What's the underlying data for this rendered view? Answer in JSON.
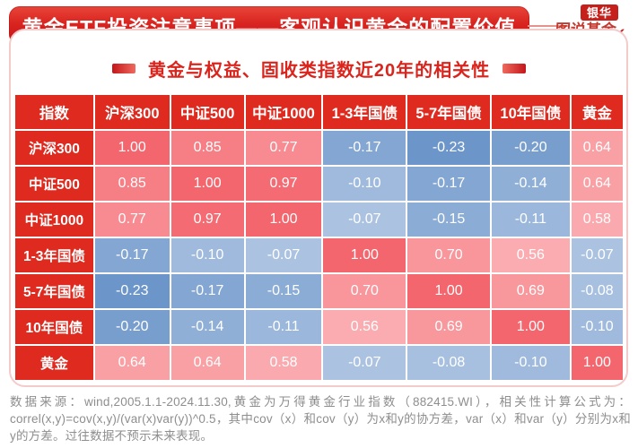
{
  "header": {
    "title": "黄金ETF投资注意事项——客观认识黄金的配置价值",
    "logo": {
      "brand": "银华",
      "product": "图说基金",
      "check": "✔"
    }
  },
  "subtitle": "黄金与权益、固收类指数近20年的相关性",
  "chart_data": {
    "type": "heatmap",
    "title": "黄金与权益、固收类指数近20年的相关性",
    "corner_label": "指数",
    "columns": [
      "沪深300",
      "中证500",
      "中证1000",
      "1-3年国债",
      "5-7年国债",
      "10年国债",
      "黄金"
    ],
    "rows": [
      "沪深300",
      "中证500",
      "中证1000",
      "1-3年国债",
      "5-7年国债",
      "10年国债",
      "黄金"
    ],
    "values": [
      [
        1.0,
        0.85,
        0.77,
        -0.17,
        -0.23,
        -0.2,
        0.64
      ],
      [
        0.85,
        1.0,
        0.97,
        -0.1,
        -0.17,
        -0.14,
        0.64
      ],
      [
        0.77,
        0.97,
        1.0,
        -0.07,
        -0.15,
        -0.11,
        0.58
      ],
      [
        -0.17,
        -0.1,
        -0.07,
        1.0,
        0.7,
        0.56,
        -0.07
      ],
      [
        -0.23,
        -0.17,
        -0.15,
        0.7,
        1.0,
        0.69,
        -0.08
      ],
      [
        -0.2,
        -0.14,
        -0.11,
        0.56,
        0.69,
        1.0,
        -0.1
      ],
      [
        0.64,
        0.64,
        0.58,
        -0.07,
        -0.08,
        -0.1,
        1.0
      ]
    ],
    "value_decimals": 2,
    "colormap": {
      "header_bg": "#de2a1f",
      "positive_low": "#fbb6ba",
      "positive_high": "#f4666e",
      "positive_range": [
        0.5,
        1.0
      ],
      "negative_low": "#c6d6ec",
      "negative_high": "#6490c6",
      "negative_range": [
        0.0,
        -0.25
      ]
    },
    "legend": "none",
    "grid": "white gaps between cells"
  },
  "footer": {
    "note": "数据来源：wind,2005.1.1-2024.11.30,黄金为万得黄金行业指数（882415.WI），相关性计算公式为：correl(x,y)=cov(x,y)/(var(x)var(y))^0.5，其中cov（x）和cov（y）为x和y的协方差，var（x）和var（y）分别为x和y的方差。过往数据不预示未来表现。"
  },
  "colors": {
    "accent_red": "#de2a1f",
    "banner_red_dark": "#c4161a",
    "frame_border": "#f3cbca",
    "footer_text": "#8e8e8e"
  }
}
